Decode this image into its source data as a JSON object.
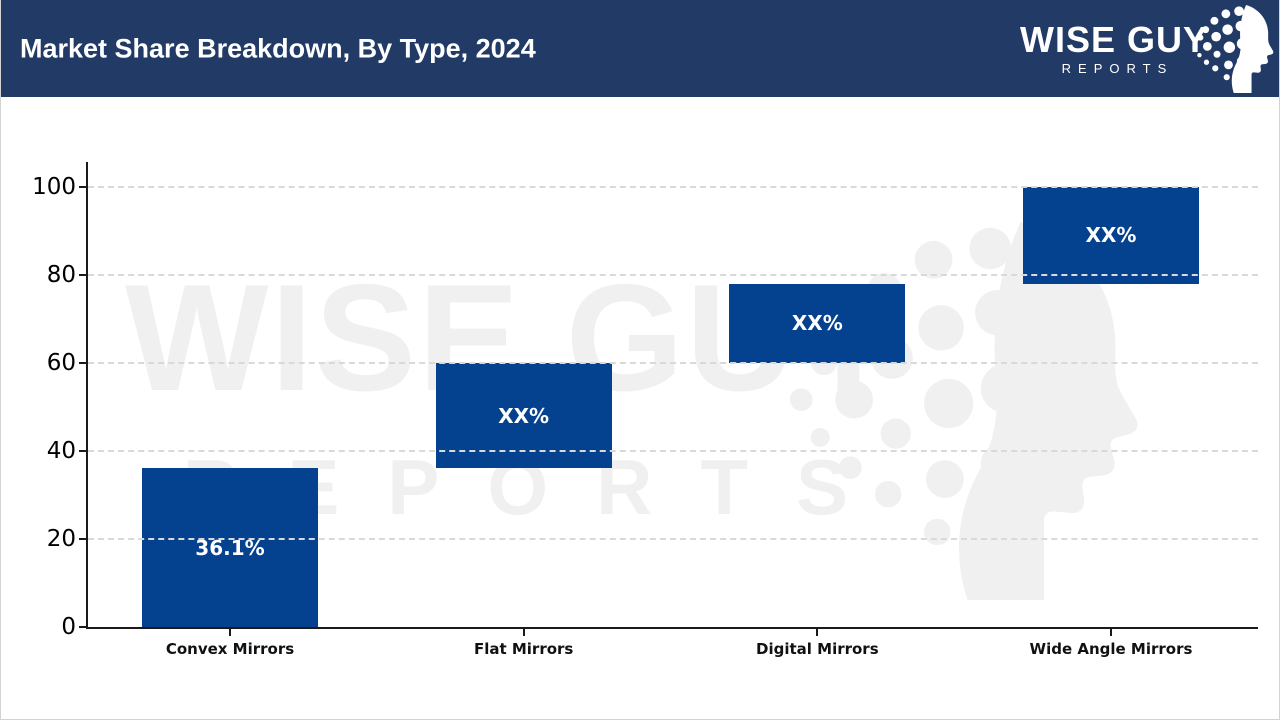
{
  "header": {
    "title": "Market Share Breakdown, By Type, 2024",
    "logo": {
      "brand_line1": "WISE GUY",
      "brand_line2": "REPORTS",
      "icon": "dotted-head-icon"
    }
  },
  "watermark": {
    "line1": "WISE GUY",
    "line2": "REPORTS",
    "icon": "dotted-head-watermark"
  },
  "chart_data": {
    "type": "bar",
    "subtype": "waterfall",
    "title": "Market Share Breakdown, By Type, 2024",
    "categories": [
      "Convex Mirrors",
      "Flat Mirrors",
      "Digital Mirrors",
      "Wide Angle Mirrors"
    ],
    "bars": [
      {
        "category": "Convex Mirrors",
        "start": 0,
        "end": 36.1,
        "label": "36.1%"
      },
      {
        "category": "Flat Mirrors",
        "start": 36.1,
        "end": 60,
        "label": "XX%"
      },
      {
        "category": "Digital Mirrors",
        "start": 60,
        "end": 78,
        "label": "XX%"
      },
      {
        "category": "Wide Angle Mirrors",
        "start": 78,
        "end": 100,
        "label": "XX%"
      }
    ],
    "xlabel": "",
    "ylabel": "",
    "ylim": [
      0,
      100
    ],
    "yticks": [
      0,
      20,
      40,
      60,
      80,
      100
    ],
    "grid": "horizontal-dashed",
    "legend": "none"
  },
  "colors": {
    "header_bg": "#223A66",
    "bar_fill": "#04418F",
    "bar_label": "#FFFFFF",
    "grid_line": "#D9D9D9",
    "axis_line": "#1A1A1A",
    "watermark": "#F0F0F0",
    "page_border": "#D3D3D3"
  }
}
